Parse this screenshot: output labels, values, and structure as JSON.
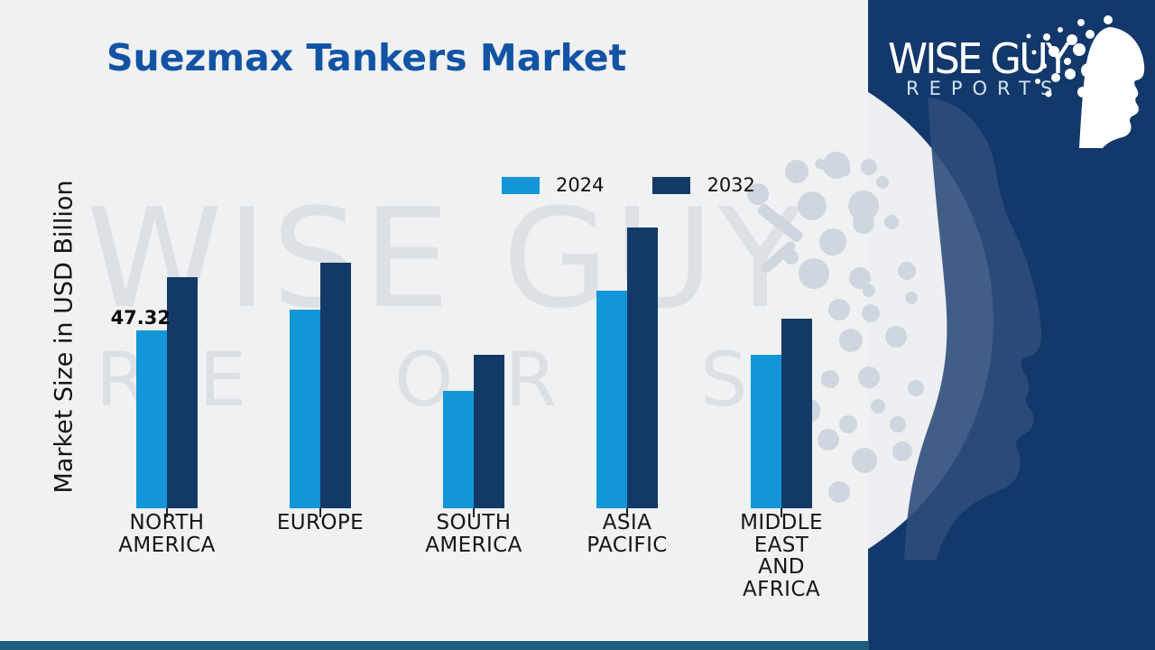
{
  "page": {
    "background": "#f0f1f2",
    "bottom_strip_color": "#1d5e7d",
    "panel_color": "#13386b"
  },
  "title": {
    "text": "Suezmax Tankers Market",
    "color": "#1253a4"
  },
  "y_axis": {
    "label": "Market Size in USD Billion"
  },
  "watermark": {
    "wordmark": "WISE GUY",
    "reports": "REPORTS"
  },
  "logo": {
    "wordmark": "WISE GUY",
    "reports": "REPORTS"
  },
  "legend": {
    "items": [
      {
        "label": "2024",
        "color": "#1296d8"
      },
      {
        "label": "2032",
        "color": "#133a67"
      }
    ]
  },
  "chart_data": {
    "type": "bar",
    "title": "Suezmax Tankers Market",
    "ylabel": "Market Size in USD Billion",
    "categories": [
      "NORTH AMERICA",
      "EUROPE",
      "SOUTH AMERICA",
      "ASIA PACIFIC",
      "MIDDLE EAST AND AFRICA"
    ],
    "category_lines": [
      [
        "NORTH",
        "AMERICA"
      ],
      [
        "EUROPE"
      ],
      [
        "SOUTH",
        "AMERICA"
      ],
      [
        "ASIA",
        "PACIFIC"
      ],
      [
        "MIDDLE",
        "EAST",
        "AND",
        "AFRICA"
      ]
    ],
    "series": [
      {
        "name": "2024",
        "color": "#1296d8",
        "values": [
          47.32,
          52.8,
          31.2,
          57.9,
          40.8
        ]
      },
      {
        "name": "2032",
        "color": "#133a67",
        "values": [
          61.5,
          65.3,
          40.8,
          74.7,
          50.4
        ]
      }
    ],
    "data_labels": [
      {
        "series_index": 0,
        "category_index": 0,
        "text": "47.32"
      }
    ],
    "legend_position": "top-center",
    "grid": false,
    "ylim": [
      0,
      80
    ]
  }
}
